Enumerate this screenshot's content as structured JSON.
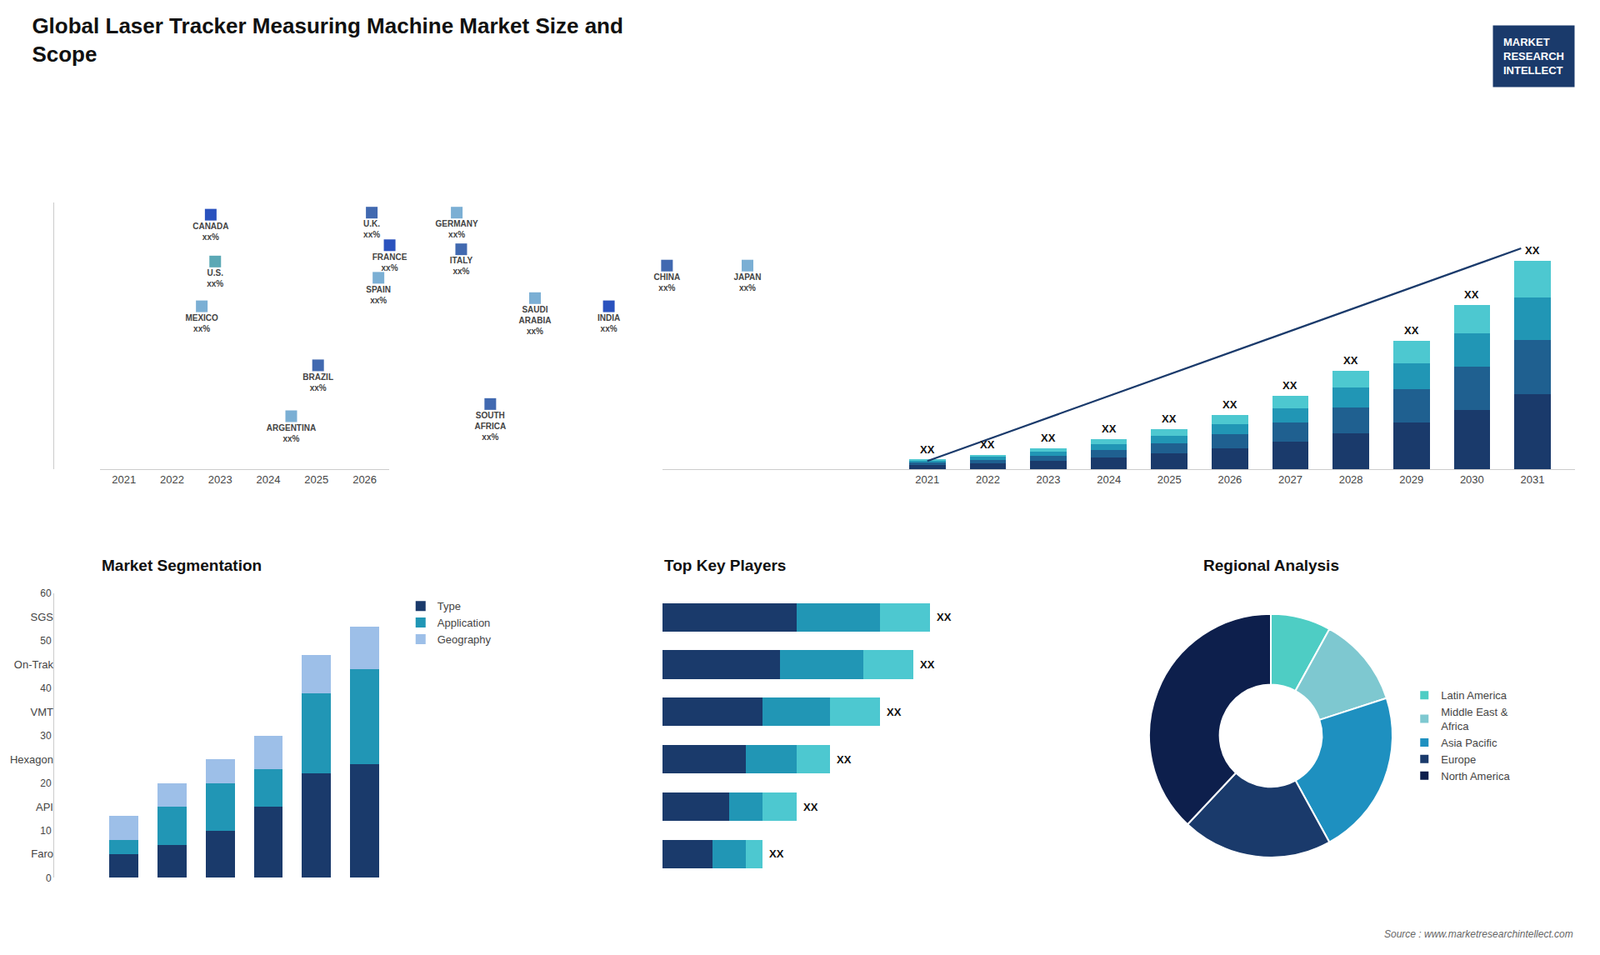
{
  "title": "Global Laser Tracker Measuring Machine Market Size and\nScope",
  "annotations": [
    {
      "text": "MARKET\nRESEARCH\nINTELLECT",
      "color": "#1a3a6b"
    },
    {
      "text": "Source : www.marketresearchintellect.com"
    }
  ],
  "chart_data": [
    {
      "type": "map",
      "categories": [
        "CANADA\nxx%",
        "U.S.\nxx%",
        "MEXICO\nxx%",
        "BRAZIL\nxx%",
        "ARGENTINA\nxx%",
        "U.K.\nxx%",
        "FRANCE\nxx%",
        "SPAIN\nxx%",
        "GERMANY\nxx%",
        "ITALY\nxx%",
        "SAUDI\nARABIA\nxx%",
        "SOUTH\nAFRICA\nxx%",
        "CHINA\nxx%",
        "INDIA\nxx%",
        "JAPAN\nxx%"
      ],
      "colors": [
        "#2a52be",
        "#5ba8b5",
        "#7bafd4",
        "#4169b0",
        "#7bafd4",
        "#4169b0",
        "#2a52be",
        "#7bafd4",
        "#7bafd4",
        "#4169b0",
        "#7bafd4",
        "#4169b0",
        "#4169b0",
        "#2a52be",
        "#7bafd4"
      ]
    },
    {
      "type": "bar",
      "stacked": true,
      "categories": [
        "2021",
        "2022",
        "2023",
        "2024",
        "2025",
        "2026",
        "2027",
        "2028",
        "2029",
        "2030",
        "2031"
      ],
      "series": [
        {
          "color": "#1a3a6b",
          "values": [
            1.5,
            2.2,
            3.2,
            4.5,
            6.0,
            8.0,
            10.5,
            14.0,
            18.0,
            23.0,
            29.0
          ]
        },
        {
          "color": "#1f6090",
          "values": [
            1.0,
            1.5,
            2.0,
            3.0,
            4.0,
            5.5,
            7.5,
            10.0,
            13.0,
            16.5,
            21.0
          ]
        },
        {
          "color": "#2196b5",
          "values": [
            0.7,
            1.0,
            1.5,
            2.2,
            3.0,
            4.0,
            5.5,
            7.5,
            10.0,
            13.0,
            16.5
          ]
        },
        {
          "color": "#4dc8d0",
          "values": [
            0.5,
            0.8,
            1.2,
            1.8,
            2.5,
            3.5,
            4.8,
            6.5,
            8.5,
            11.0,
            14.0
          ]
        },
        {
          "type": "line",
          "color": "#1a3a6b",
          "marker": "arrow",
          "values": [
            3.145,
            null,
            null,
            null,
            null,
            null,
            null,
            null,
            null,
            null,
            86.94
          ]
        }
      ],
      "annotations": [
        "XX",
        "XX",
        "XX",
        "XX",
        "XX",
        "XX",
        "XX",
        "XX",
        "XX",
        "XX",
        "XX"
      ],
      "ylim": [
        0,
        103.04
      ],
      "tick_labels": "x",
      "grid": false
    },
    {
      "type": "bar",
      "stacked": true,
      "title": "Market Segmentation",
      "categories": [
        "2021",
        "2022",
        "2023",
        "2024",
        "2025",
        "2026"
      ],
      "series": [
        {
          "name": "Type",
          "color": "#1a3a6b",
          "values": [
            5,
            7,
            10,
            15,
            22,
            24
          ]
        },
        {
          "name": "Application",
          "color": "#2196b5",
          "values": [
            3,
            8,
            10,
            8,
            17,
            20
          ]
        },
        {
          "name": "Geography",
          "color": "#9dbfe8",
          "values": [
            5,
            5,
            5,
            7,
            8,
            9
          ]
        }
      ],
      "ylim": [
        0,
        60
      ],
      "yticks": [
        0,
        10,
        20,
        30,
        40,
        50,
        60
      ],
      "grid": false,
      "legend": "right"
    },
    {
      "type": "bar",
      "stacked": true,
      "orientation": "horizontal",
      "title": "Top Key Players",
      "categories": [
        "SGS",
        "On-Trak",
        "VMT",
        "Hexagon",
        "API",
        "Faro"
      ],
      "series": [
        {
          "color": "#1a3a6b",
          "values": [
            8,
            7,
            6,
            5,
            4,
            3
          ]
        },
        {
          "color": "#2196b5",
          "values": [
            5,
            5,
            4,
            3,
            2,
            2
          ]
        },
        {
          "color": "#4dc8d0",
          "values": [
            3,
            3,
            3,
            2,
            2,
            1
          ]
        }
      ],
      "annotations": [
        "XX",
        "XX",
        "XX",
        "XX",
        "XX",
        "XX"
      ],
      "xlim": [
        0,
        20
      ],
      "tick_labels": "y",
      "grid": false
    },
    {
      "type": "donut",
      "title": "Regional Analysis",
      "categories": [
        "Latin America",
        "Middle East &\nAfrica",
        "Asia Pacific",
        "Europe",
        "North America"
      ],
      "values": [
        8,
        12,
        22,
        20,
        38
      ],
      "colors": [
        "#4ecdc4",
        "#7ec8d0",
        "#1e90c0",
        "#1a3a6b",
        "#0d1f4c"
      ],
      "legend": "right"
    }
  ]
}
